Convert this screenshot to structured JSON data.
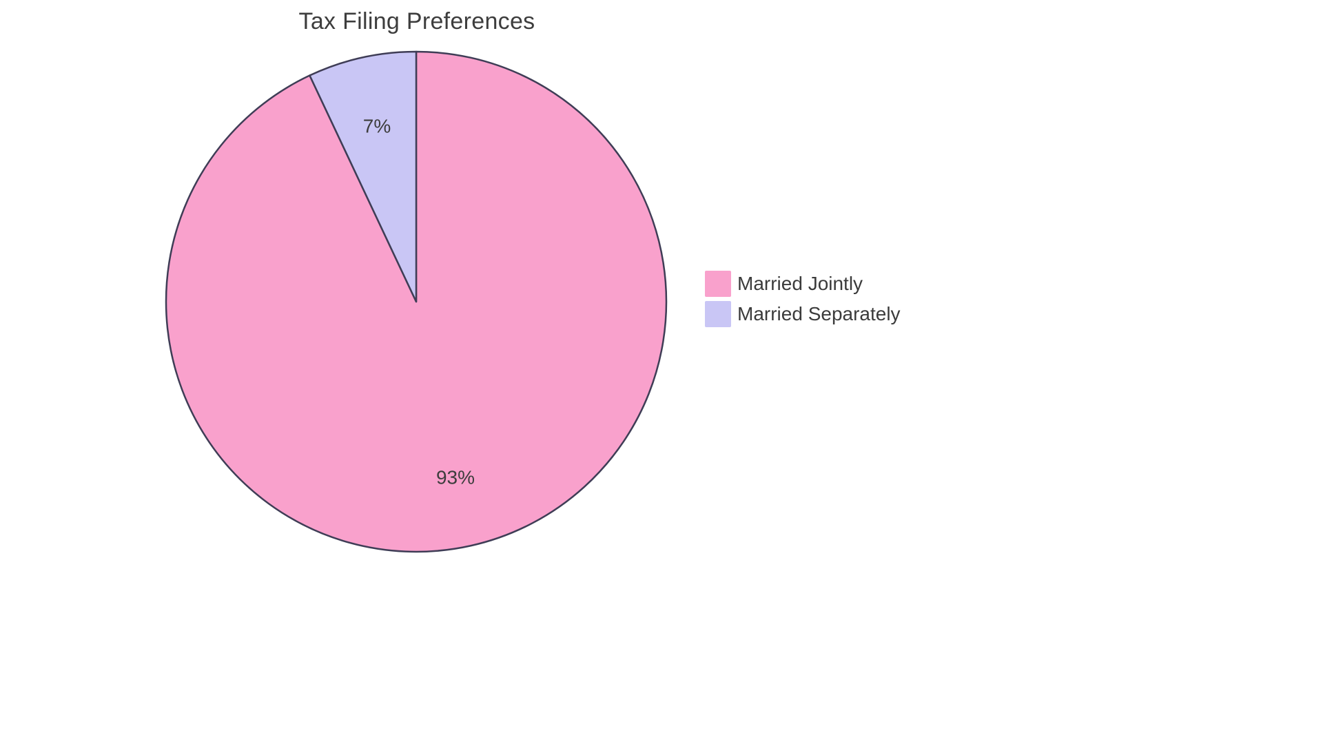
{
  "chart_data": {
    "type": "pie",
    "title": "Tax Filing Preferences",
    "categories": [
      "Married Jointly",
      "Married Separately"
    ],
    "values": [
      93,
      7
    ],
    "pct_labels": [
      "93%",
      "7%"
    ],
    "colors": [
      "#F9A1CC",
      "#C9C6F5"
    ],
    "stroke_color": "#3F3D56",
    "stroke_width": 2.5,
    "start_angle_deg": 0,
    "direction": "clockwise",
    "legend_position": "right",
    "title_color": "#3D3D3D",
    "label_color": "#3D3D3D",
    "background": "#FFFFFF"
  }
}
